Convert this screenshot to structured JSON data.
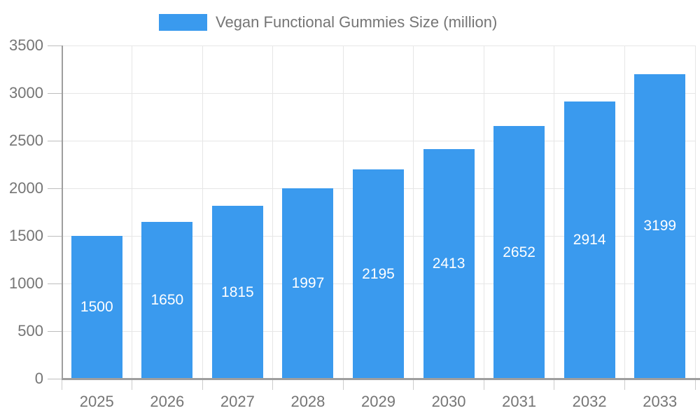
{
  "legend": {
    "label": "Vegan Functional Gummies Size (million)"
  },
  "chart_data": {
    "type": "bar",
    "title": "Vegan Functional Gummies Size (million)",
    "categories": [
      "2025",
      "2026",
      "2027",
      "2028",
      "2029",
      "2030",
      "2031",
      "2032",
      "2033"
    ],
    "values": [
      1500,
      1650,
      1815,
      1997,
      2195,
      2413,
      2652,
      2914,
      3199
    ],
    "xlabel": "",
    "ylabel": "",
    "ylim": [
      0,
      3500
    ],
    "yticks": [
      0,
      500,
      1000,
      1500,
      2000,
      2500,
      3000,
      3500
    ],
    "grid": true,
    "legend_position": "top-center",
    "value_labels": "inside-center"
  },
  "colors": {
    "bar": "#3a9aee",
    "value_label_text": "#ffffff",
    "axis_text": "#757575",
    "gridline": "#e6e6e6",
    "axis_line": "#9e9e9e",
    "y_tick": "#bdbdbd",
    "x_tick": "#cccccc",
    "background": "#ffffff"
  }
}
